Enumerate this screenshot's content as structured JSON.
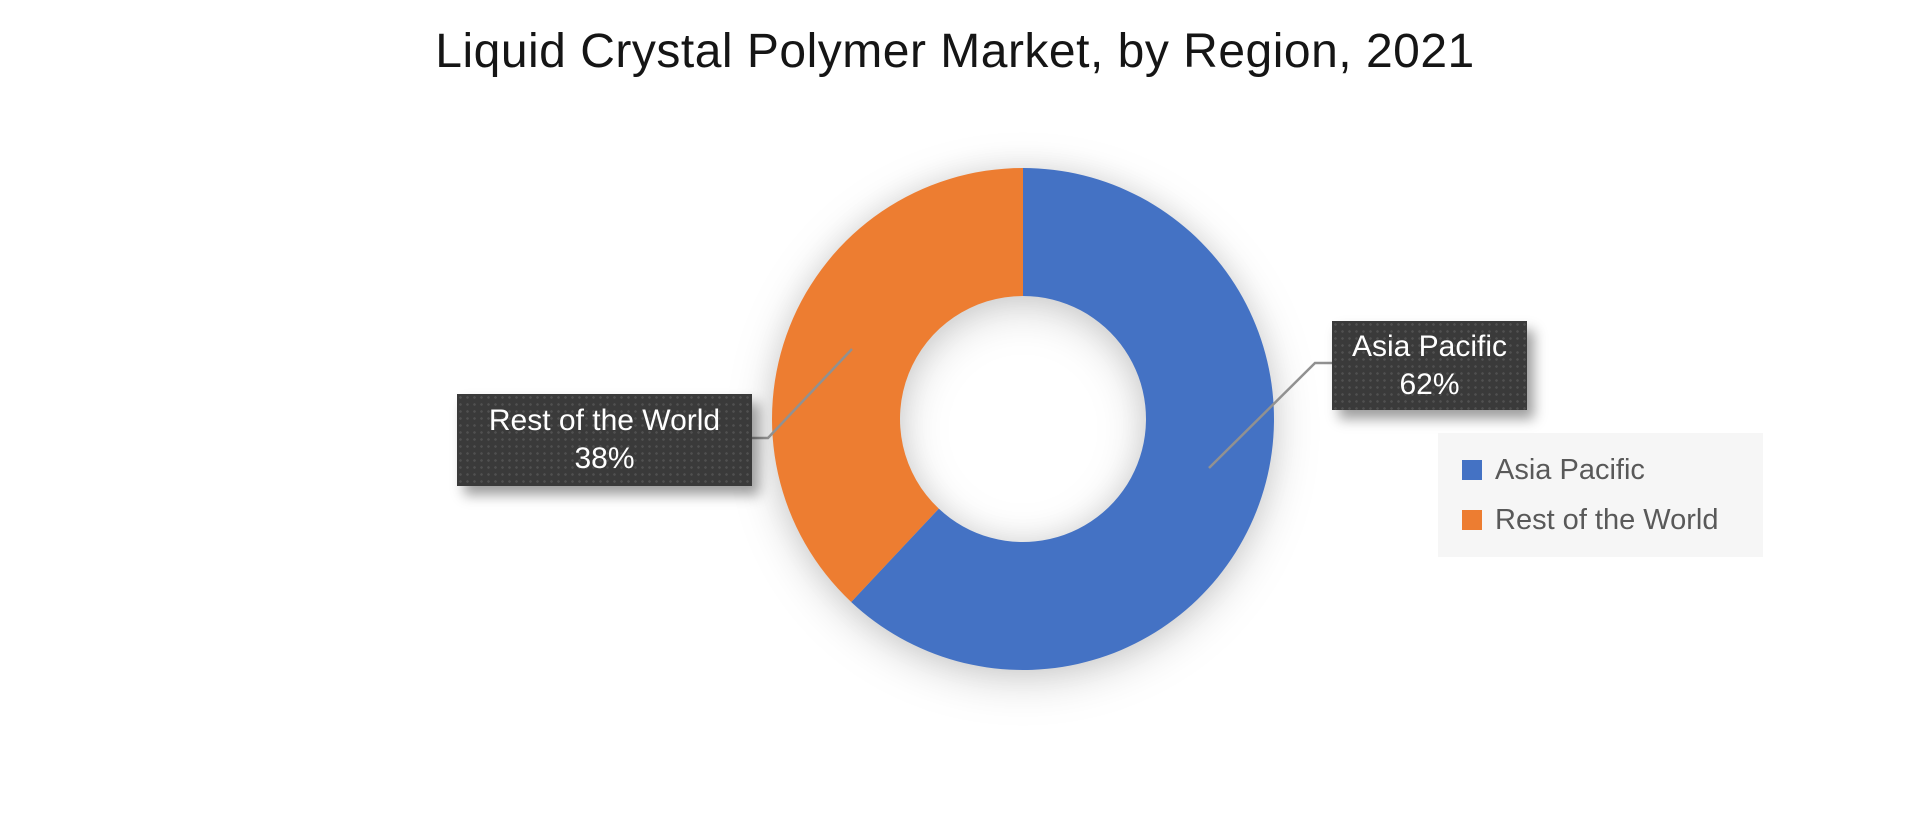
{
  "title": "Liquid Crystal Polymer Market, by Region, 2021",
  "chart_data": {
    "type": "pie",
    "subtype": "donut",
    "title": "Liquid Crystal Polymer Market, by Region, 2021",
    "categories": [
      "Asia Pacific",
      "Rest of the World"
    ],
    "values": [
      62,
      38
    ],
    "unit": "%",
    "series_colors": [
      "#4472c4",
      "#ed7d31"
    ],
    "start_angle_deg": 0,
    "direction": "clockwise",
    "donut_hole_ratio": 0.49,
    "grid": false,
    "legend_position": "right",
    "data_labels": [
      {
        "label": "Asia Pacific",
        "value_text": "62%"
      },
      {
        "label": "Rest of the World",
        "value_text": "38%"
      }
    ]
  },
  "callouts": {
    "asia_pacific": {
      "label": "Asia Pacific",
      "value": "62%"
    },
    "rest_of_world": {
      "label": "Rest of the World",
      "value": "38%"
    }
  },
  "legend": {
    "items": [
      {
        "label": "Asia Pacific",
        "color": "#4472c4"
      },
      {
        "label": "Rest of the World",
        "color": "#ed7d31"
      }
    ]
  },
  "colors": {
    "asia_pacific": "#4472c4",
    "rest_of_world": "#ed7d31",
    "callout_bg": "#3a3a3a",
    "callout_text": "#ffffff",
    "leader_line": "#919191",
    "legend_bg": "#f6f6f6",
    "legend_text": "#595959",
    "title_text": "#151515",
    "background": "#ffffff"
  }
}
